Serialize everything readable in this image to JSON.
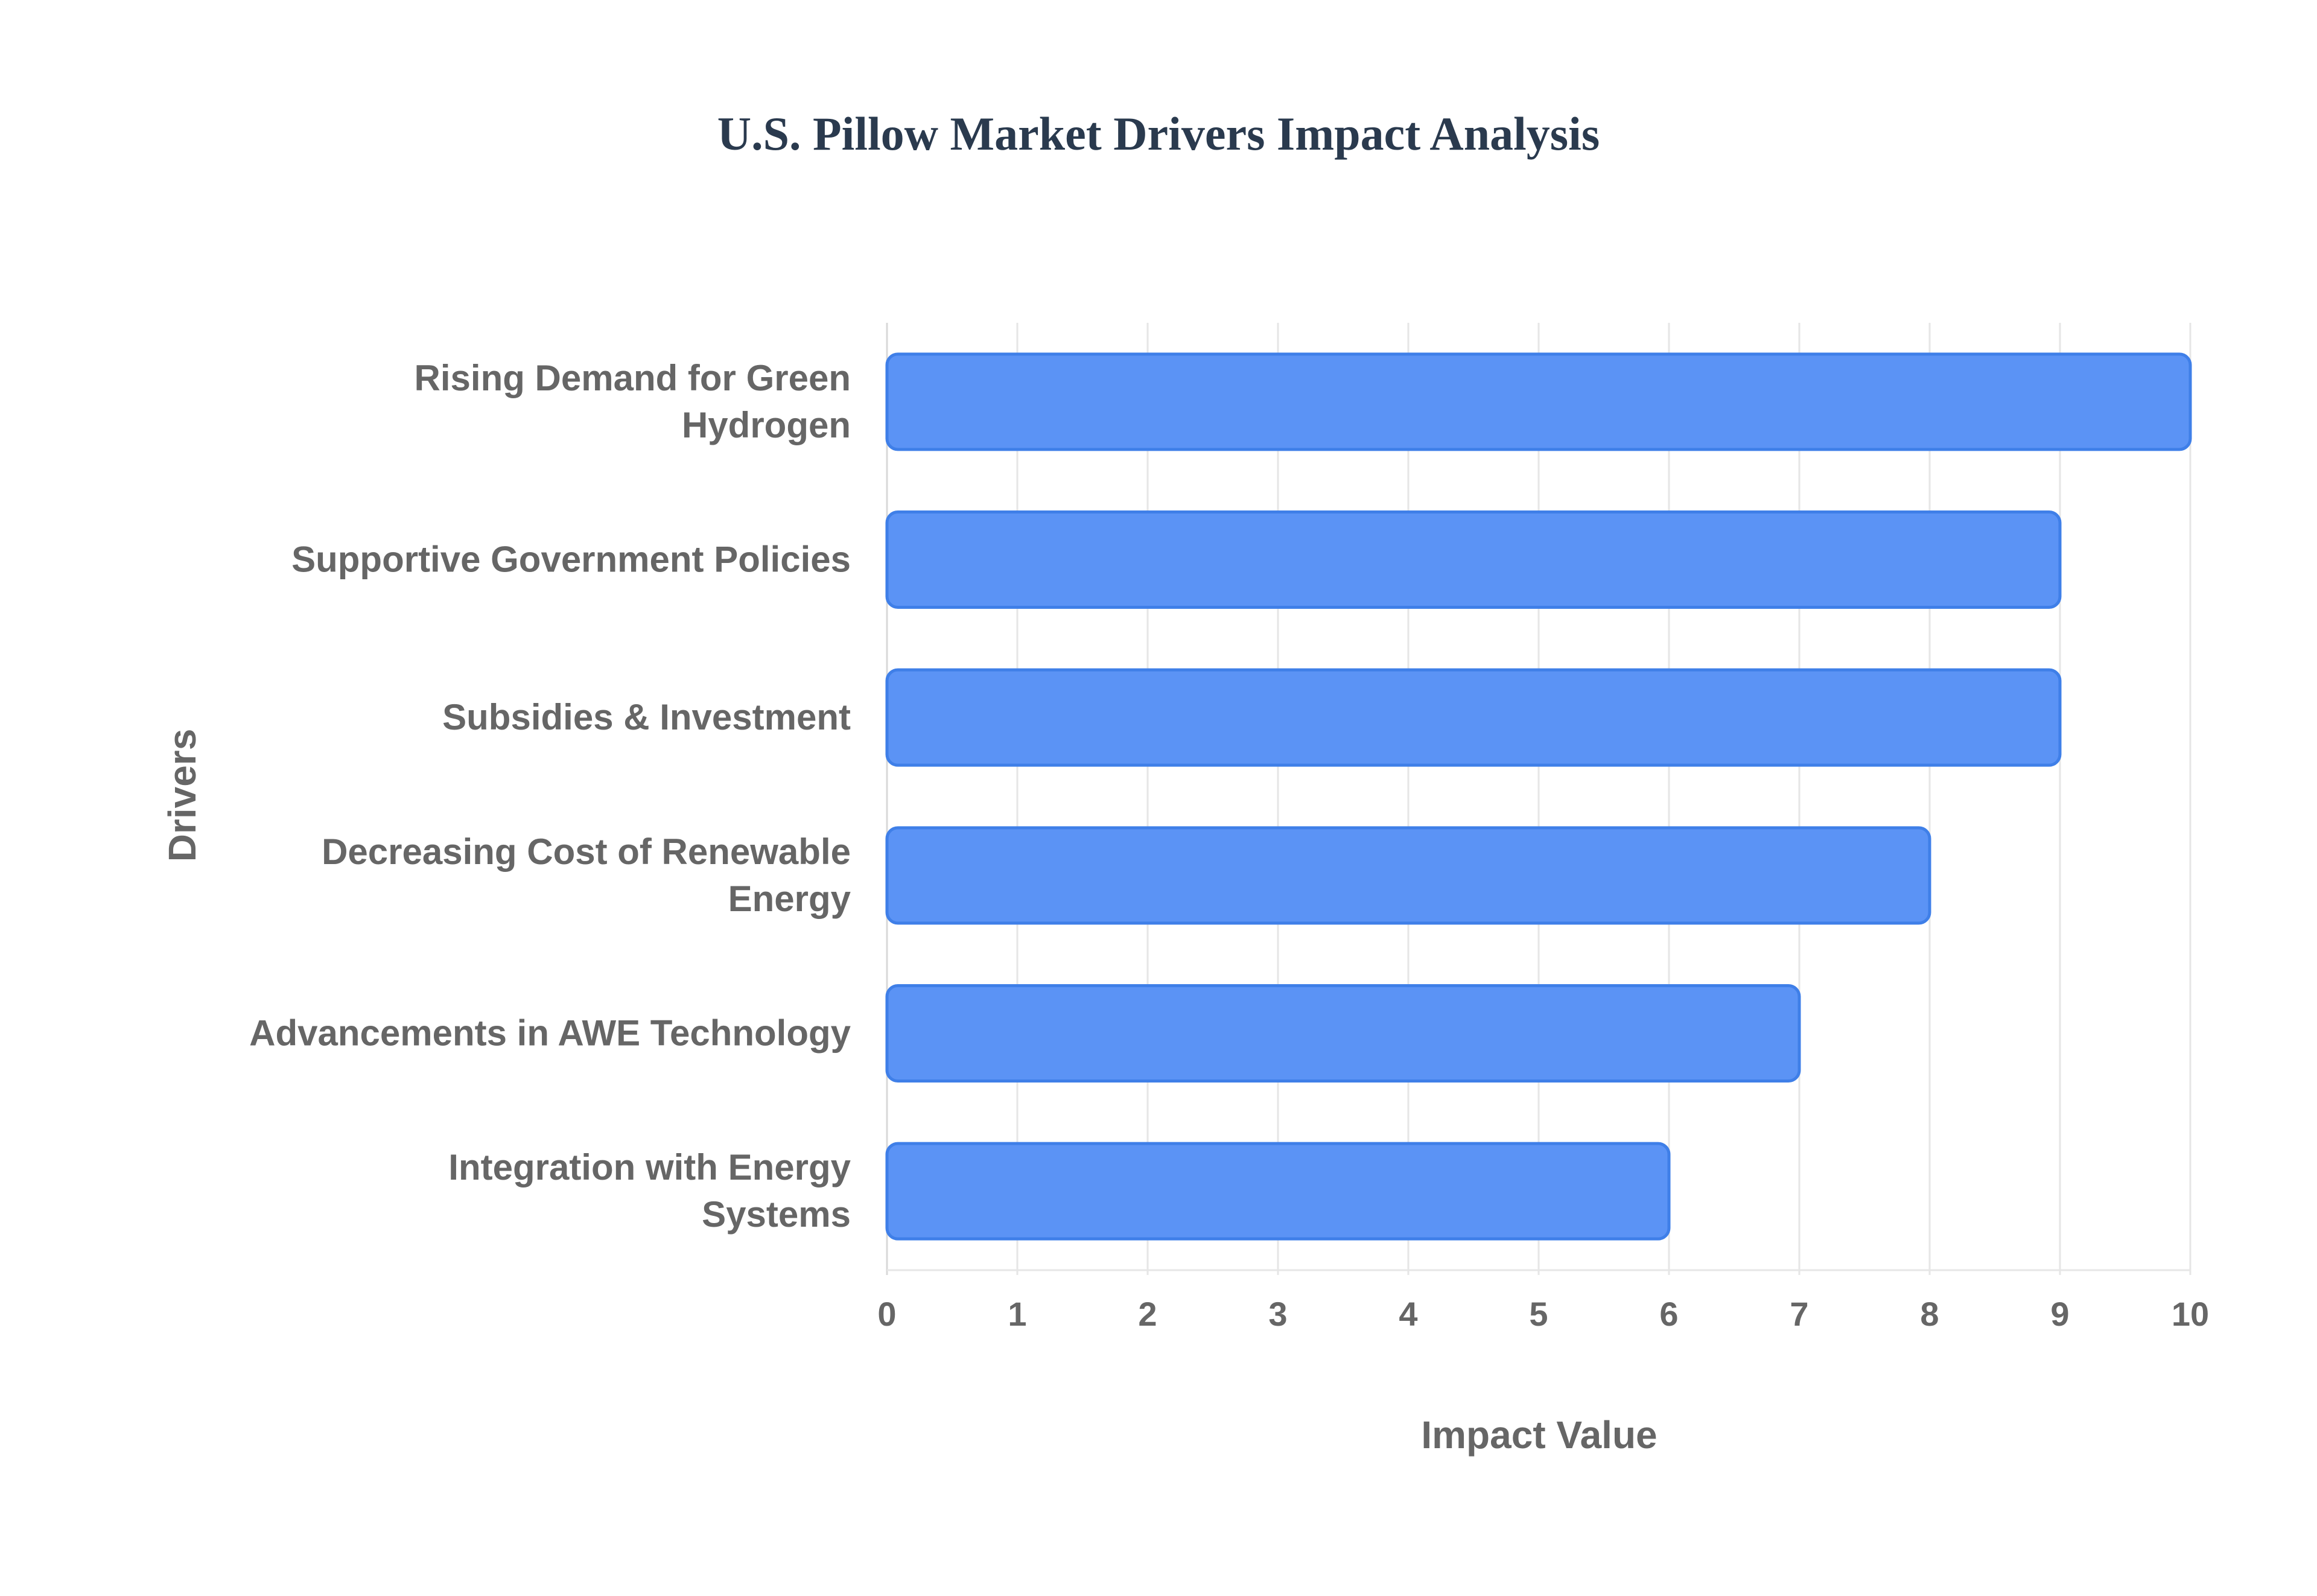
{
  "chart_data": {
    "type": "bar",
    "orientation": "horizontal",
    "title": "U.S. Pillow Market Drivers Impact Analysis",
    "xlabel": "Impact Value",
    "ylabel": "Drivers",
    "categories": [
      [
        "Rising Demand for Green",
        "Hydrogen"
      ],
      [
        "Supportive Government Policies"
      ],
      [
        "Subsidies & Investment"
      ],
      [
        "Decreasing Cost of Renewable",
        "Energy"
      ],
      [
        "Advancements in AWE Technology"
      ],
      [
        "Integration with Energy",
        "Systems"
      ]
    ],
    "values": [
      10,
      9,
      9,
      8,
      7,
      6
    ],
    "xlim": [
      0,
      10
    ],
    "xticks": [
      "0",
      "1",
      "2",
      "3",
      "4",
      "5",
      "6",
      "7",
      "8",
      "9",
      "10"
    ],
    "grid": true,
    "colors": {
      "bar_fill": "#5b93f5",
      "bar_stroke": "#3f7fe8",
      "title": "#2a3a4e",
      "label": "#666666",
      "grid": "#e6e6e6"
    }
  }
}
